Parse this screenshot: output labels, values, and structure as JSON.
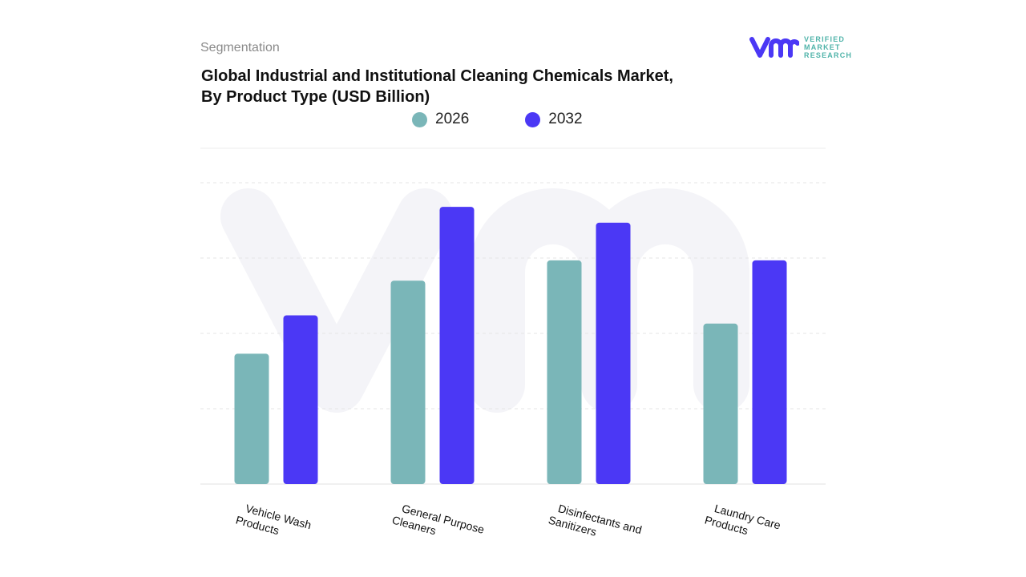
{
  "header": {
    "segment": "Segmentation",
    "title_line1": "Global Industrial and Institutional Cleaning Chemicals Market,",
    "title_line2": "By Product Type (USD Billion)"
  },
  "logo": {
    "mark": "vmr",
    "line1": "VERIFIED",
    "line2": "MARKET",
    "line3": "RESEARCH"
  },
  "colors": {
    "s2026": "#7ab6b8",
    "s2032": "#4b38f5",
    "grid": "#e6e6e6"
  },
  "chart_data": {
    "type": "bar",
    "title": "Global Industrial and Institutional Cleaning Chemicals Market, By Product Type (USD Billion)",
    "categories": [
      "Vehicle Wash Products",
      "General Purpose Cleaners",
      "Disinfectants and Sanitizers",
      "Laundry Care Products"
    ],
    "series": [
      {
        "name": "2026",
        "values": [
          1.73,
          2.7,
          2.97,
          2.13
        ]
      },
      {
        "name": "2032",
        "values": [
          2.24,
          3.68,
          3.47,
          2.97
        ]
      }
    ],
    "ylim": [
      0,
      4
    ],
    "grid": true,
    "legend": "top-center",
    "xlabel": "",
    "ylabel": ""
  },
  "xlabels": [
    [
      "Vehicle Wash",
      "Products"
    ],
    [
      "General Purpose",
      "Cleaners"
    ],
    [
      "Disinfectants and",
      "Sanitizers"
    ],
    [
      "Laundry Care",
      "Products"
    ]
  ]
}
